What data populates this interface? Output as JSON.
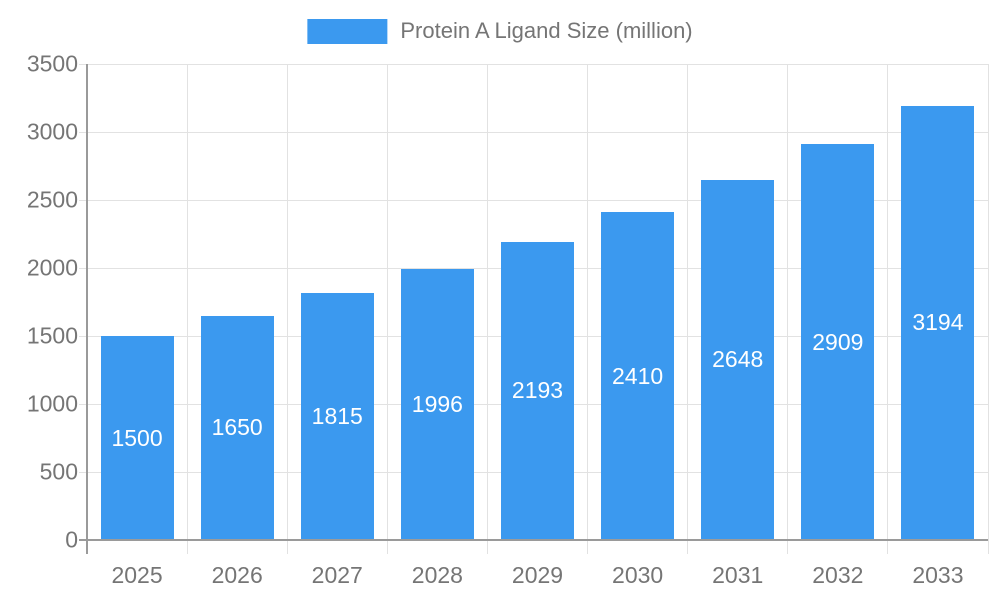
{
  "chart": {
    "legend_label": "Protein A Ligand Size (million)",
    "colors": {
      "bar": "#3b99ef",
      "axis": "#9a9a9a",
      "grid": "#e2e2e2",
      "tick_text": "#757575",
      "bar_label_text": "#ffffff"
    }
  },
  "chart_data": {
    "type": "bar",
    "title": "Protein A Ligand Size (million)",
    "series": [
      {
        "name": "Protein A Ligand Size (million)",
        "values": [
          1500,
          1650,
          1815,
          1996,
          2193,
          2410,
          2648,
          2909,
          3194
        ]
      }
    ],
    "categories": [
      "2025",
      "2026",
      "2027",
      "2028",
      "2029",
      "2030",
      "2031",
      "2032",
      "2033"
    ],
    "xlabel": "",
    "ylabel": "",
    "ylim": [
      0,
      3500
    ],
    "yticks": [
      0,
      500,
      1000,
      1500,
      2000,
      2500,
      3000,
      3500
    ],
    "grid": true,
    "legend_position": "top",
    "bar_value_labels": "centered-inside-white"
  }
}
